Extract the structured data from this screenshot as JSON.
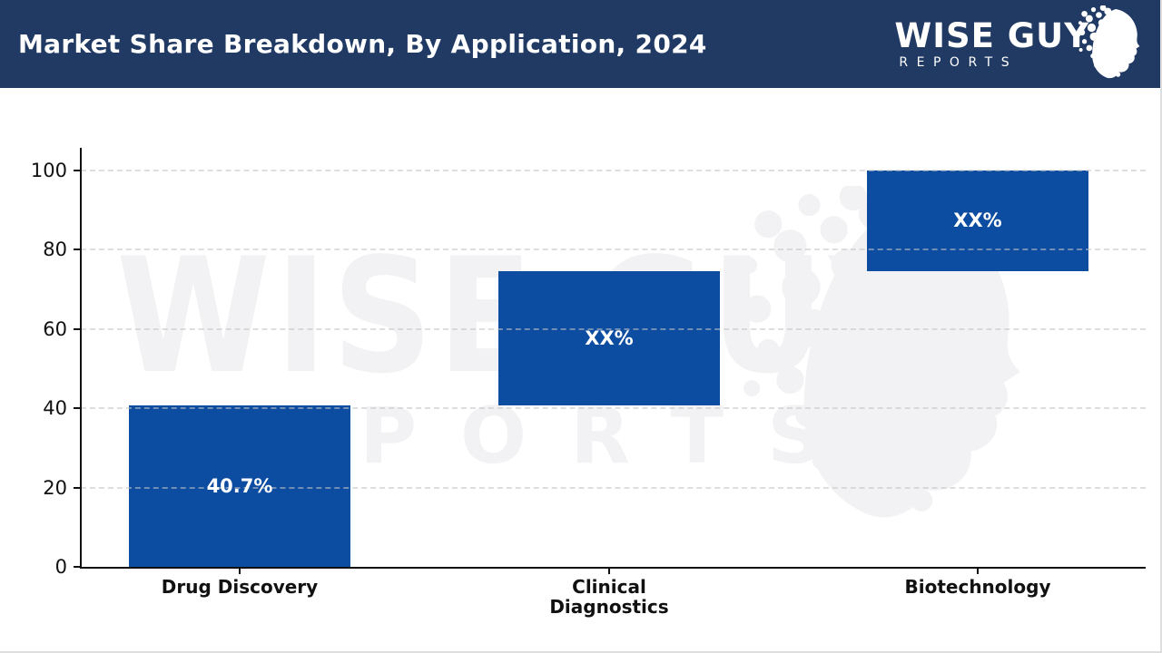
{
  "header": {
    "title": "Market Share Breakdown, By Application, 2024",
    "logo": {
      "name": "WISE GUY",
      "tagline": "REPORTS"
    }
  },
  "watermark": {
    "line1": "WISE GUY",
    "line2": "REPORTS"
  },
  "chart_data": {
    "type": "bar",
    "subtype": "waterfall",
    "title": "Market Share Breakdown, By Application, 2024",
    "categories": [
      "Drug Discovery",
      "Clinical Diagnostics",
      "Biotechnology"
    ],
    "bars": [
      {
        "category": "Drug Discovery",
        "lines": [
          "Drug Discovery"
        ],
        "start": 0,
        "end": 40.7,
        "value": 40.7,
        "label": "40.7%"
      },
      {
        "category": "Clinical Diagnostics",
        "lines": [
          "Clinical",
          "Diagnostics"
        ],
        "start": 40.7,
        "end": 74.5,
        "value": 33.8,
        "label": "XX%"
      },
      {
        "category": "Biotechnology",
        "lines": [
          "Biotechnology"
        ],
        "start": 74.5,
        "end": 100,
        "value": 25.5,
        "label": "XX%"
      }
    ],
    "yticks": [
      0,
      20,
      40,
      60,
      80,
      100
    ],
    "ylim": [
      0,
      106
    ],
    "xlabel": "",
    "ylabel": "",
    "grid": "horizontal-dashed",
    "legend": null,
    "bar_color": "#0C4DA2",
    "bar_label_color": "#FFFFFF"
  },
  "colors": {
    "header_bg": "#203A64",
    "bar": "#0C4DA2",
    "axis": "#111111",
    "gridline": "#C4C4C4",
    "watermark": "#F2F2F5",
    "background": "#FFFFFF"
  }
}
